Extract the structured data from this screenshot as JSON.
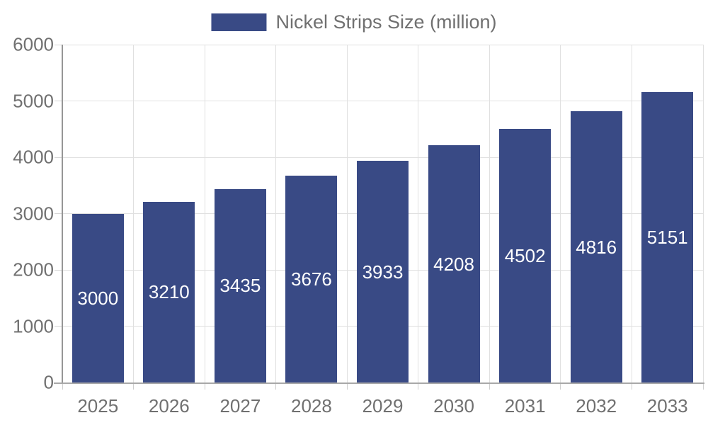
{
  "chart_data": {
    "type": "bar",
    "title": "",
    "series_name": "Nickel Strips Size (million)",
    "categories": [
      "2025",
      "2026",
      "2027",
      "2028",
      "2029",
      "2030",
      "2031",
      "2032",
      "2033"
    ],
    "values": [
      3000,
      3210,
      3435,
      3676,
      3933,
      4208,
      4502,
      4816,
      5151
    ],
    "xlabel": "",
    "ylabel": "",
    "ylim": [
      0,
      6000
    ],
    "ytick_step": 1000,
    "yticks": [
      0,
      1000,
      2000,
      3000,
      4000,
      5000,
      6000
    ],
    "grid": true,
    "value_labels_inside_bars": true,
    "legend_position": "top-center",
    "colors": {
      "bar": "#394a85",
      "value_label": "#ffffff",
      "axis_text": "#707070",
      "legend_text": "#707070",
      "grid": "#e0e0e0",
      "axis_line": "#969696",
      "background": "#ffffff"
    }
  }
}
